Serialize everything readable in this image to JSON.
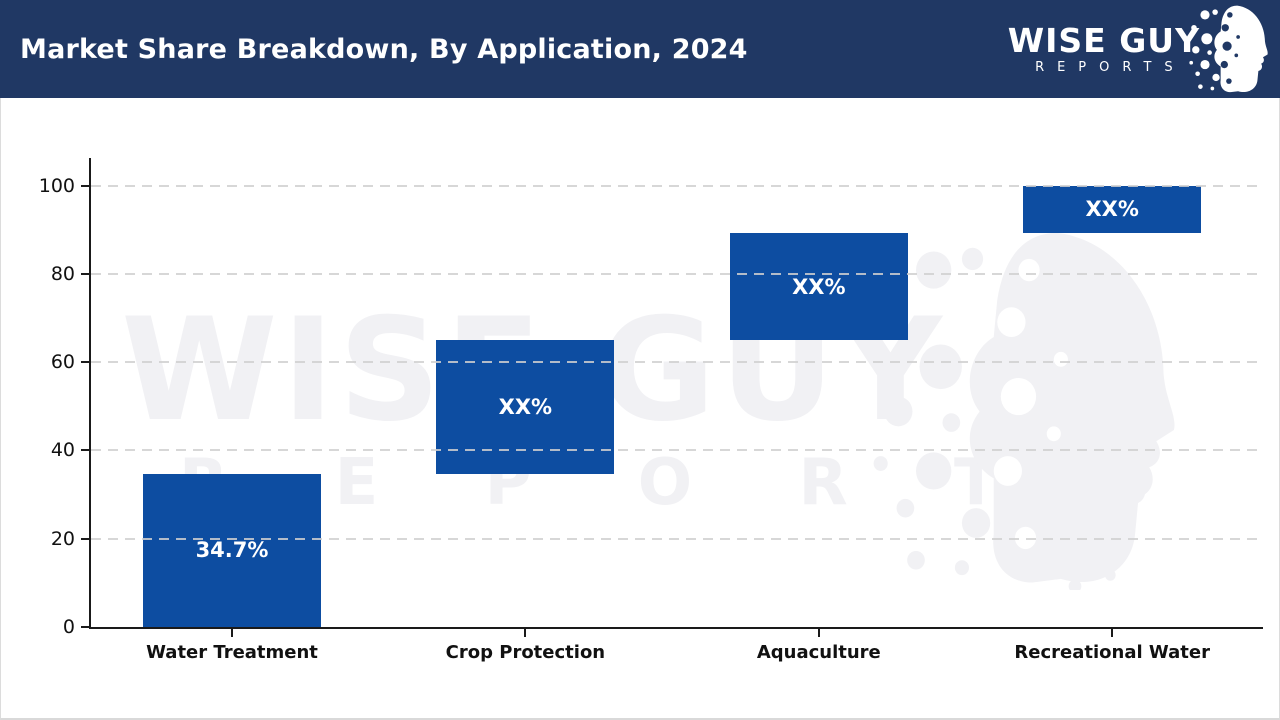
{
  "header": {
    "title": "Market Share Breakdown, By Application, 2024",
    "logo": {
      "line1": "WISE GUY",
      "line2": "REPORTS"
    }
  },
  "watermark": {
    "line1": "WISE GUY",
    "line2": "R E P O R T S"
  },
  "chart_data": {
    "type": "bar",
    "subtype": "waterfall",
    "title": "Market Share Breakdown, By Application, 2024",
    "categories": [
      "Water Treatment",
      "Crop Protection",
      "Aquaculture",
      "Recreational Water"
    ],
    "segments": [
      {
        "category": "Water Treatment",
        "start": 0,
        "end": 34.7,
        "label": "34.7%"
      },
      {
        "category": "Crop Protection",
        "start": 34.7,
        "end": 65.0,
        "label": "XX%"
      },
      {
        "category": "Aquaculture",
        "start": 65.0,
        "end": 89.3,
        "label": "XX%"
      },
      {
        "category": "Recreational Water",
        "start": 89.3,
        "end": 100.0,
        "label": "XX%"
      }
    ],
    "yticks": [
      0,
      20,
      40,
      60,
      80,
      100
    ],
    "ylim": [
      0,
      105.7
    ],
    "xlabel": "",
    "ylabel": "",
    "grid": "horizontal-dashed",
    "legend": "none",
    "bar_color": "#0d4da1",
    "bar_label_color": "#ffffff"
  },
  "colors": {
    "header_bg": "#203864",
    "bar": "#0d4da1",
    "gridline": "#d3d3d3",
    "axis": "#1a1a1a",
    "watermark": "#f1f1f4",
    "page_bg": "#ffffff"
  }
}
